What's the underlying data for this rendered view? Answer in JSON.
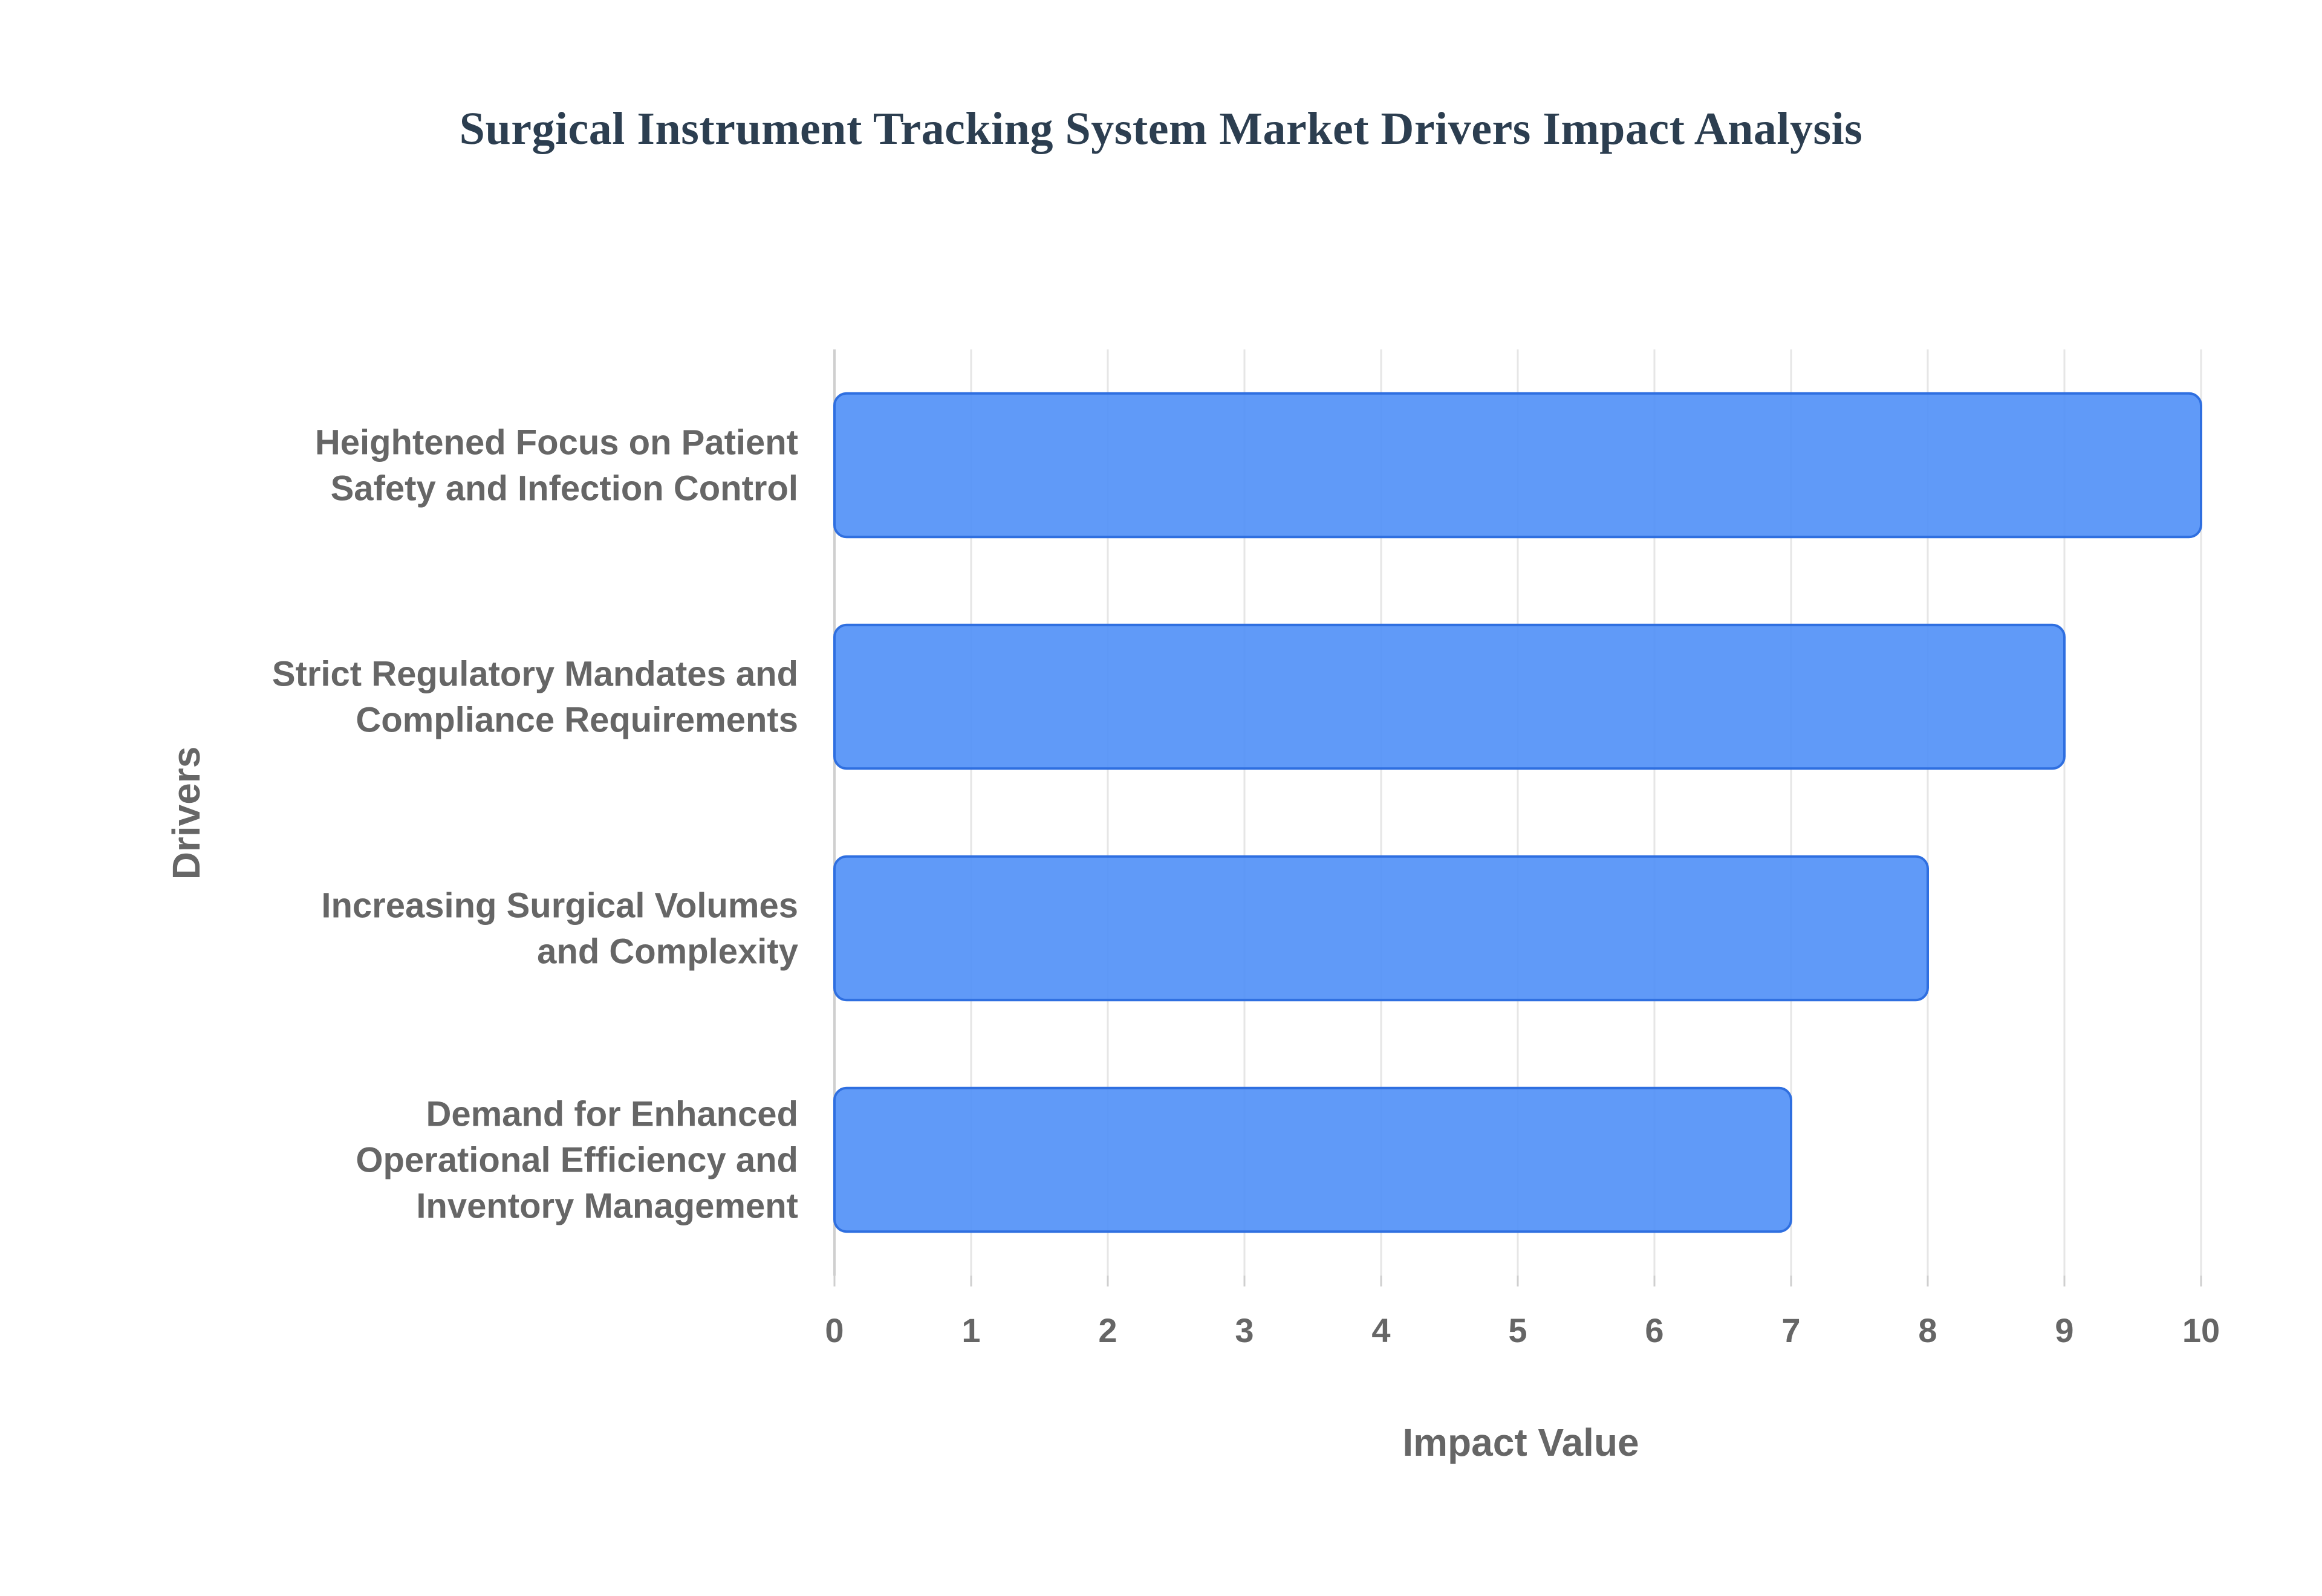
{
  "chart_data": {
    "type": "bar",
    "orientation": "horizontal",
    "title": "Surgical Instrument Tracking System Market Drivers Impact Analysis",
    "xlabel": "Impact Value",
    "ylabel": "Drivers",
    "categories": [
      [
        "Heightened Focus on Patient",
        "Safety and Infection Control"
      ],
      [
        "Strict Regulatory Mandates and",
        "Compliance Requirements"
      ],
      [
        "Increasing Surgical Volumes",
        "and Complexity"
      ],
      [
        "Demand for Enhanced",
        "Operational Efficiency and",
        "Inventory Management"
      ]
    ],
    "values": [
      10,
      9,
      8,
      7
    ],
    "xlim": [
      0,
      10
    ],
    "xticks": [
      "0",
      "1",
      "2",
      "3",
      "4",
      "5",
      "6",
      "7",
      "8",
      "9",
      "10"
    ],
    "grid": true,
    "legend": "none",
    "colors": {
      "bar_fill": "#4f8ff7",
      "bar_stroke": "#2f6fe0",
      "grid": "#e6e6e6",
      "axis": "#cfcfcf",
      "tick_text": "#666666",
      "title": "#2c3e50"
    }
  }
}
